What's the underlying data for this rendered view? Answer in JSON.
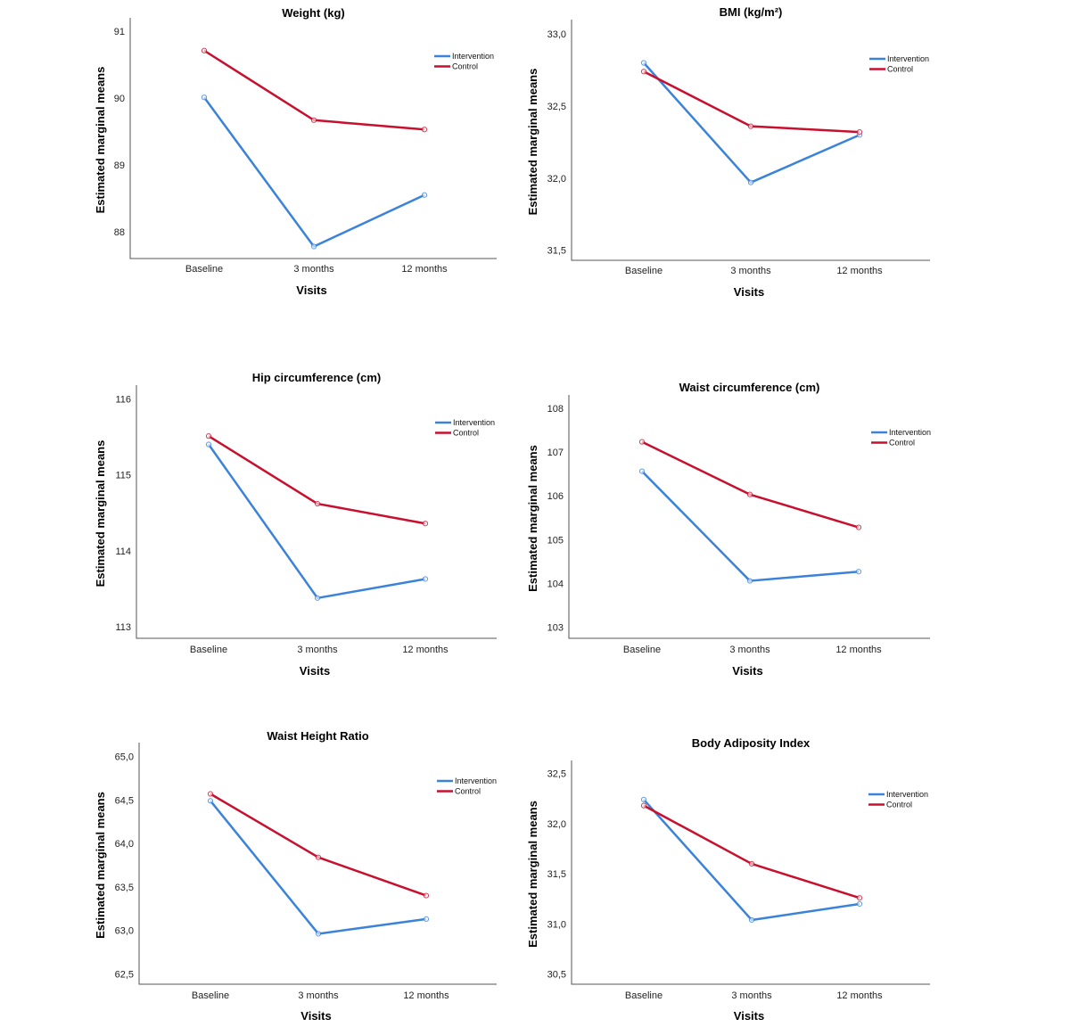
{
  "chart_data": [
    {
      "type": "line",
      "title": "Weight (kg)",
      "xlabel": "Visits",
      "ylabel": "Estimated marginal means",
      "categories": [
        "Baseline",
        "3 months",
        "12 months"
      ],
      "y_ticks": [
        "88",
        "89",
        "90",
        "91"
      ],
      "y_tick_values": [
        88,
        89,
        90,
        91
      ],
      "ylim": [
        87.6,
        91.2
      ],
      "legend": {
        "position": "top-right",
        "entries": [
          "Intervention",
          "Control"
        ]
      },
      "series": [
        {
          "name": "Intervention",
          "color": "#3b82d9",
          "values": [
            90.01,
            87.78,
            88.55
          ]
        },
        {
          "name": "Control",
          "color": "#c8102e",
          "values": [
            90.71,
            89.67,
            89.53
          ]
        }
      ]
    },
    {
      "type": "line",
      "title": "BMI (kg/m²)",
      "xlabel": "Visits",
      "ylabel": "Estimated marginal means",
      "categories": [
        "Baseline",
        "3 months",
        "12 months"
      ],
      "y_ticks": [
        "31,5",
        "32,0",
        "32,5",
        "33,0"
      ],
      "y_tick_values": [
        31.5,
        32.0,
        32.5,
        33.0
      ],
      "ylim": [
        31.43,
        33.1
      ],
      "legend": {
        "position": "top-right",
        "entries": [
          "Intervention",
          "Control"
        ]
      },
      "series": [
        {
          "name": "Intervention",
          "color": "#3b82d9",
          "values": [
            32.8,
            31.97,
            32.3
          ]
        },
        {
          "name": "Control",
          "color": "#c8102e",
          "values": [
            32.74,
            32.36,
            32.32
          ]
        }
      ]
    },
    {
      "type": "line",
      "title": "Hip circumference (cm)",
      "xlabel": "Visits",
      "ylabel": "Estimated marginal means",
      "categories": [
        "Baseline",
        "3 months",
        "12 months"
      ],
      "y_ticks": [
        "113",
        "114",
        "115",
        "116"
      ],
      "y_tick_values": [
        113,
        114,
        115,
        116
      ],
      "ylim": [
        112.85,
        116.18
      ],
      "legend": {
        "position": "top-right",
        "entries": [
          "Intervention",
          "Control"
        ]
      },
      "series": [
        {
          "name": "Intervention",
          "color": "#3b82d9",
          "values": [
            115.4,
            113.38,
            113.63
          ]
        },
        {
          "name": "Control",
          "color": "#c8102e",
          "values": [
            115.51,
            114.62,
            114.36
          ]
        }
      ]
    },
    {
      "type": "line",
      "title": "Waist circumference (cm)",
      "xlabel": "Visits",
      "ylabel": "Estimated marginal means",
      "categories": [
        "Baseline",
        "3 months",
        "12 months"
      ],
      "y_ticks": [
        "103",
        "104",
        "105",
        "106",
        "107",
        "108"
      ],
      "y_tick_values": [
        103,
        104,
        105,
        106,
        107,
        108
      ],
      "ylim": [
        102.75,
        108.3
      ],
      "legend": {
        "position": "top-right",
        "entries": [
          "Intervention",
          "Control"
        ]
      },
      "series": [
        {
          "name": "Intervention",
          "color": "#3b82d9",
          "values": [
            106.56,
            104.06,
            104.27
          ]
        },
        {
          "name": "Control",
          "color": "#c8102e",
          "values": [
            107.23,
            106.03,
            105.28
          ]
        }
      ]
    },
    {
      "type": "line",
      "title": "Waist Height Ratio",
      "xlabel": "Visits",
      "ylabel": "Estimated marginal means",
      "categories": [
        "Baseline",
        "3 months",
        "12 months"
      ],
      "y_ticks": [
        "62,5",
        "63,0",
        "63,5",
        "64,0",
        "64,5",
        "65,0"
      ],
      "y_tick_values": [
        62.5,
        63.0,
        63.5,
        64.0,
        64.5,
        65.0
      ],
      "ylim": [
        62.38,
        65.16
      ],
      "legend": {
        "position": "top-right",
        "entries": [
          "Intervention",
          "Control"
        ]
      },
      "series": [
        {
          "name": "Intervention",
          "color": "#3b82d9",
          "values": [
            64.49,
            62.96,
            63.13
          ]
        },
        {
          "name": "Control",
          "color": "#c8102e",
          "values": [
            64.57,
            63.84,
            63.4
          ]
        }
      ]
    },
    {
      "type": "line",
      "title": "Body Adiposity Index",
      "xlabel": "Visits",
      "ylabel": "Estimated marginal means",
      "categories": [
        "Baseline",
        "3 months",
        "12 months"
      ],
      "y_ticks": [
        "30,5",
        "31,0",
        "31,5",
        "32,0",
        "32,5"
      ],
      "y_tick_values": [
        30.5,
        31.0,
        31.5,
        32.0,
        32.5
      ],
      "ylim": [
        30.4,
        32.63
      ],
      "legend": {
        "position": "top-right",
        "entries": [
          "Intervention",
          "Control"
        ]
      },
      "series": [
        {
          "name": "Intervention",
          "color": "#3b82d9",
          "values": [
            32.24,
            31.04,
            31.2
          ]
        },
        {
          "name": "Control",
          "color": "#c8102e",
          "values": [
            32.18,
            31.6,
            31.26
          ]
        }
      ]
    }
  ]
}
